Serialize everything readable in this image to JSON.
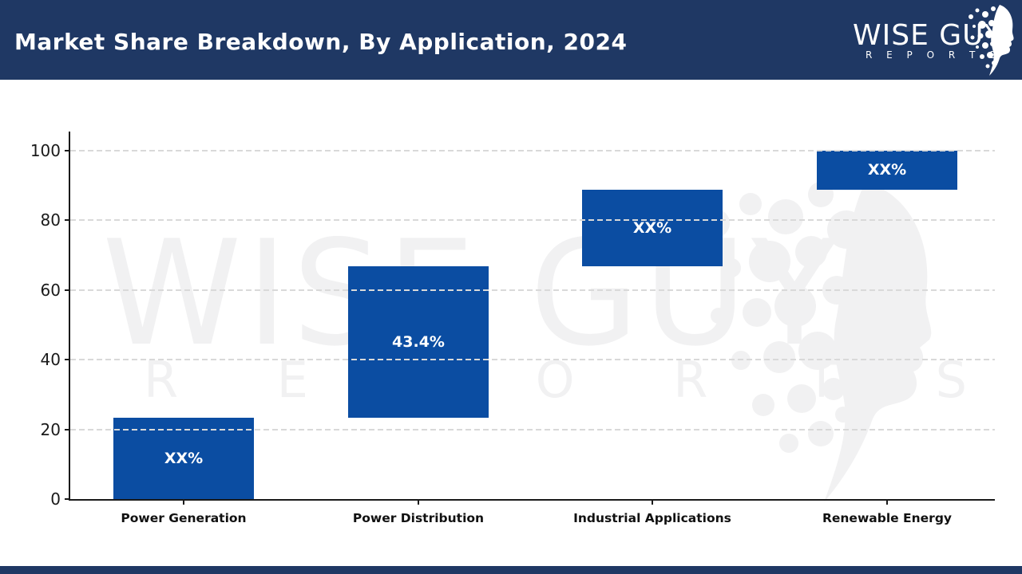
{
  "header": {
    "title": "Market Share Breakdown, By Application, 2024",
    "logo": {
      "line1": "WISE GUY",
      "line2": "R E P O R T S"
    }
  },
  "watermark": {
    "line1": "WISE GUY",
    "line2": "R E P O R T S"
  },
  "colors": {
    "header_navy": "#1f3864",
    "bar_blue": "#0b4da2",
    "grid_gray": "#d9d9d9",
    "watermark_gray": "#f1f1f2",
    "bar_label_white": "#ffffff"
  },
  "chart_data": {
    "type": "bar",
    "subtype": "waterfall",
    "title": "Market Share Breakdown, By Application, 2024",
    "xlabel": "",
    "ylabel": "",
    "ylim": [
      0,
      105
    ],
    "yticks": [
      0,
      20,
      40,
      60,
      80,
      100
    ],
    "grid": "horizontal dashed",
    "legend": "none",
    "categories": [
      "Power Generation",
      "Power Distribution",
      "Industrial Applications",
      "Renewable Energy"
    ],
    "segments": [
      {
        "category": "Power Generation",
        "start": 0,
        "end": 23.3,
        "label": "XX%"
      },
      {
        "category": "Power Distribution",
        "start": 23.3,
        "end": 66.7,
        "label": "43.4%"
      },
      {
        "category": "Industrial Applications",
        "start": 66.7,
        "end": 88.6,
        "label": "XX%"
      },
      {
        "category": "Renewable Energy",
        "start": 88.6,
        "end": 100,
        "label": "XX%"
      }
    ]
  }
}
